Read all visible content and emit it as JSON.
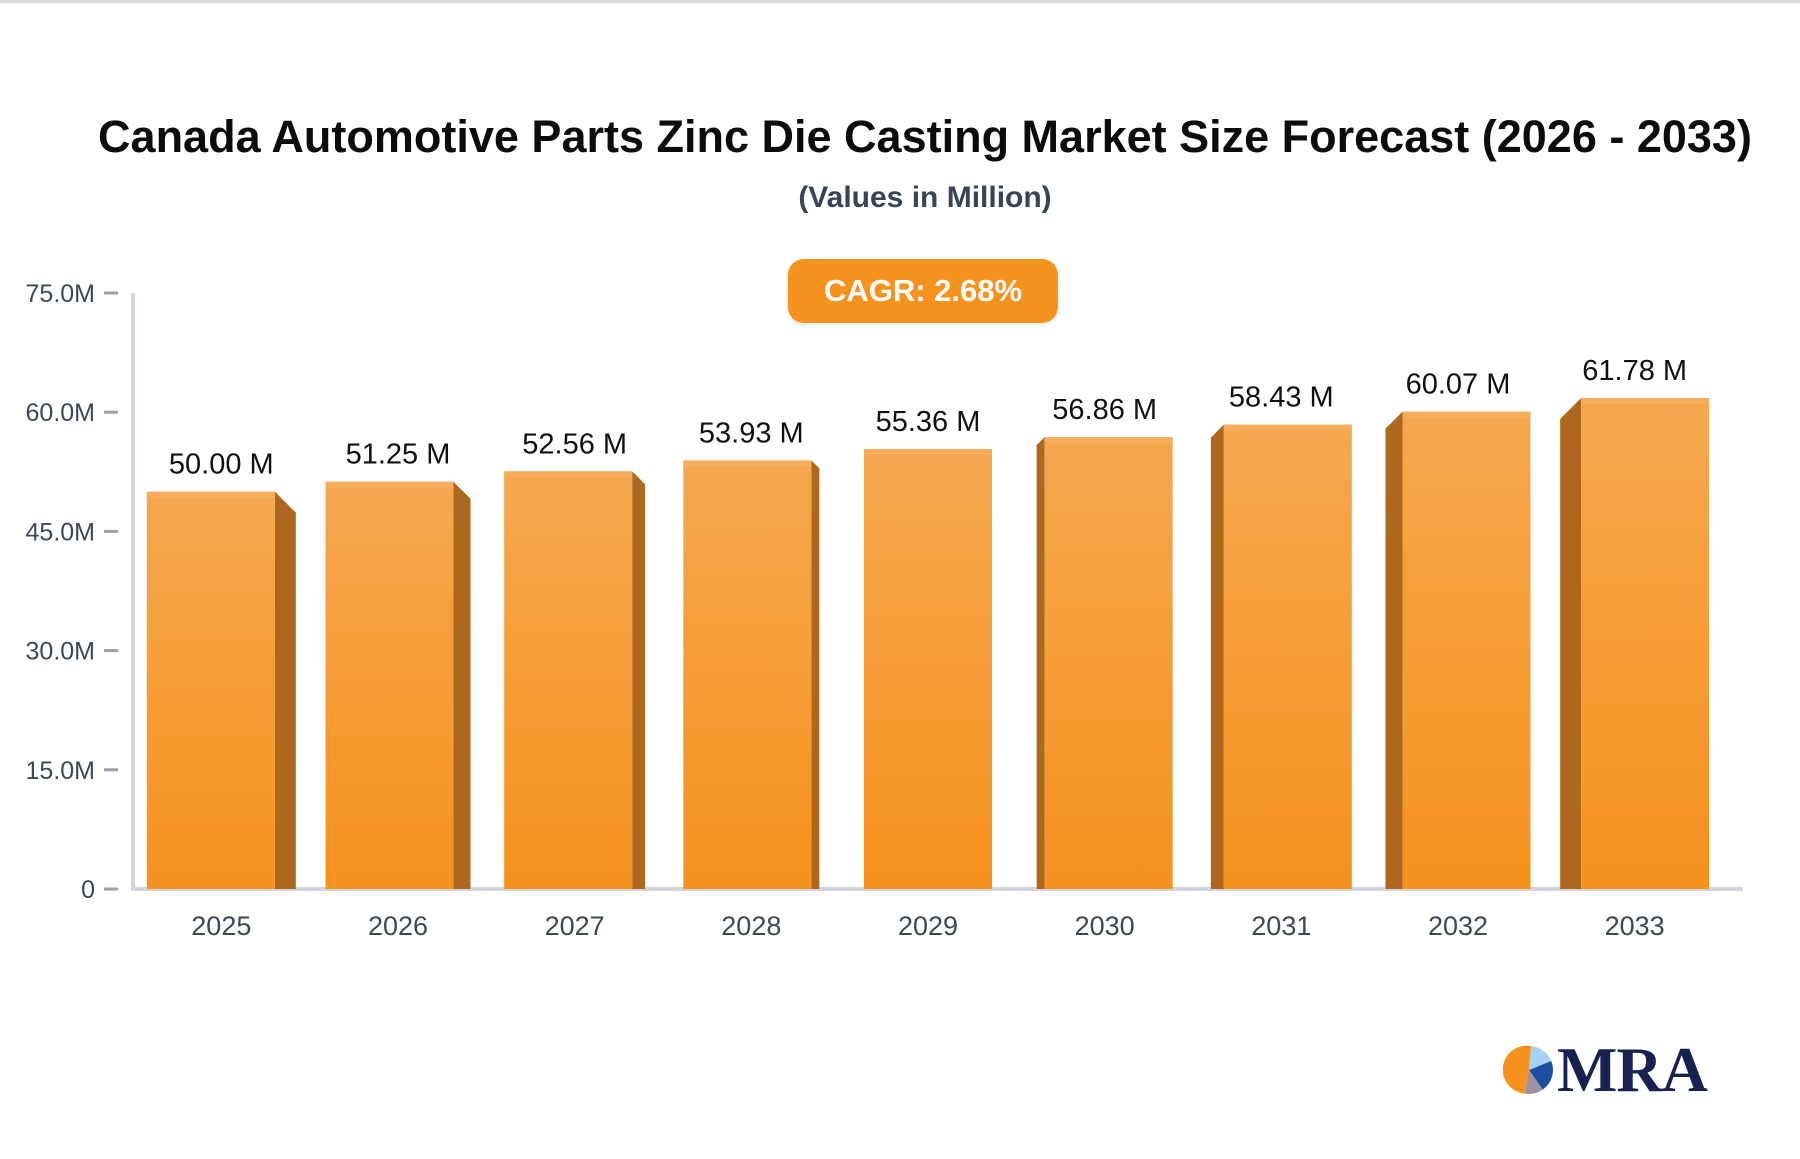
{
  "title": "Canada Automotive Parts Zinc Die Casting Market Size Forecast (2026 - 2033)",
  "subtitle": "(Values in Million)",
  "cagr": {
    "label": "CAGR: 2.68%"
  },
  "logo": {
    "brand": "MRA"
  },
  "colors": {
    "bar_main": "#f6921e",
    "bar_light_top": "#f5a74f",
    "bar_top_band": "#f7ae5c",
    "bar_side": "#ad681d",
    "badge_bg": "#f6921e",
    "axis_line": "#d3d5de",
    "tick_mark": "#9aa0ac",
    "axis_text": "#3e4756",
    "value_text": "#111111",
    "navy": "#182251",
    "pie_light_blue": "#a6d3f3",
    "pie_dark_blue": "#1d4fa1",
    "pie_gray": "#9a93a3"
  },
  "chart_data": {
    "type": "bar",
    "title": "Canada Automotive Parts Zinc Die Casting Market Size Forecast (2026 - 2033)",
    "subtitle": "(Values in Million)",
    "annotation": "CAGR: 2.68%",
    "categories": [
      "2025",
      "2026",
      "2027",
      "2028",
      "2029",
      "2030",
      "2031",
      "2032",
      "2033"
    ],
    "values": [
      50.0,
      51.25,
      52.56,
      53.93,
      55.36,
      56.86,
      58.43,
      60.07,
      61.78
    ],
    "bar_labels": [
      "50.00 M",
      "51.25 M",
      "52.56 M",
      "53.93 M",
      "55.36 M",
      "56.86 M",
      "58.43 M",
      "60.07 M",
      "61.78 M"
    ],
    "xlabel": "",
    "ylabel": "",
    "ylim": [
      0,
      75
    ],
    "y_ticks": [
      0,
      15,
      30,
      45,
      60,
      75
    ],
    "y_tick_labels": [
      "0",
      "15.0M",
      "30.0M",
      "45.0M",
      "60.0M",
      "75.0M"
    ],
    "grid": false,
    "legend": false,
    "unit": "Million"
  }
}
